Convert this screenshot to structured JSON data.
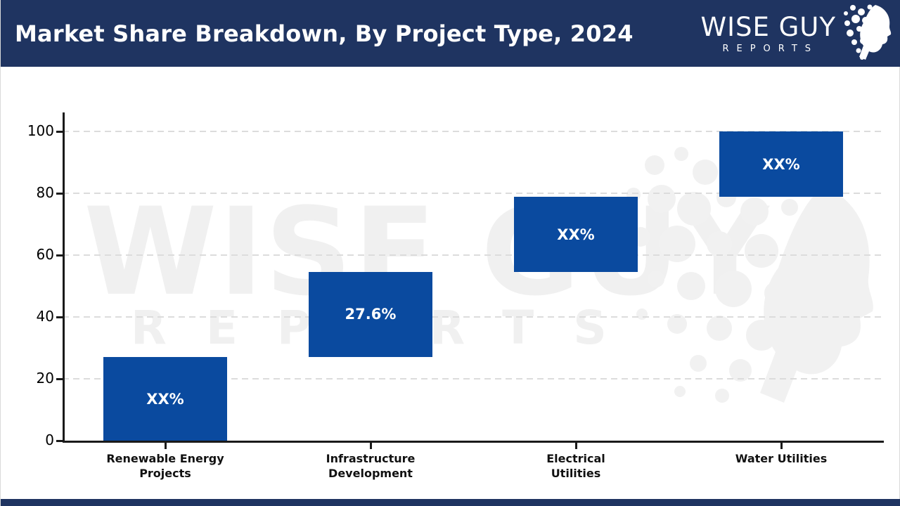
{
  "header": {
    "title": "Market Share Breakdown, By Project Type, 2024",
    "bg_color": "#1f3461",
    "logo": {
      "line1": "WISE GUY",
      "line2": "REPORTS"
    }
  },
  "footer": {
    "bg_color": "#1f3461"
  },
  "watermark": {
    "line1": "WISE GUY",
    "line2": "REPORTS"
  },
  "chart_data": {
    "type": "bar",
    "subtype": "waterfall",
    "title": "Market Share Breakdown, By Project Type, 2024",
    "xlabel": "",
    "ylabel": "",
    "ylim": [
      0,
      100
    ],
    "yticks": [
      0,
      20,
      40,
      60,
      80,
      100
    ],
    "grid": "horizontal-dashed",
    "bar_color": "#0a4a9f",
    "categories": [
      [
        "Renewable Energy",
        "Projects"
      ],
      [
        "Infrastructure",
        "Development"
      ],
      [
        "Electrical",
        "Utilities"
      ],
      [
        "Water Utilities"
      ]
    ],
    "bars": [
      {
        "category": "Renewable Energy Projects",
        "label": "XX%",
        "start": 0,
        "end": 27
      },
      {
        "category": "Infrastructure Development",
        "label": "27.6%",
        "start": 27,
        "end": 54.6
      },
      {
        "category": "Electrical Utilities",
        "label": "XX%",
        "start": 54.6,
        "end": 78.8
      },
      {
        "category": "Water Utilities",
        "label": "XX%",
        "start": 78.8,
        "end": 100
      }
    ]
  }
}
